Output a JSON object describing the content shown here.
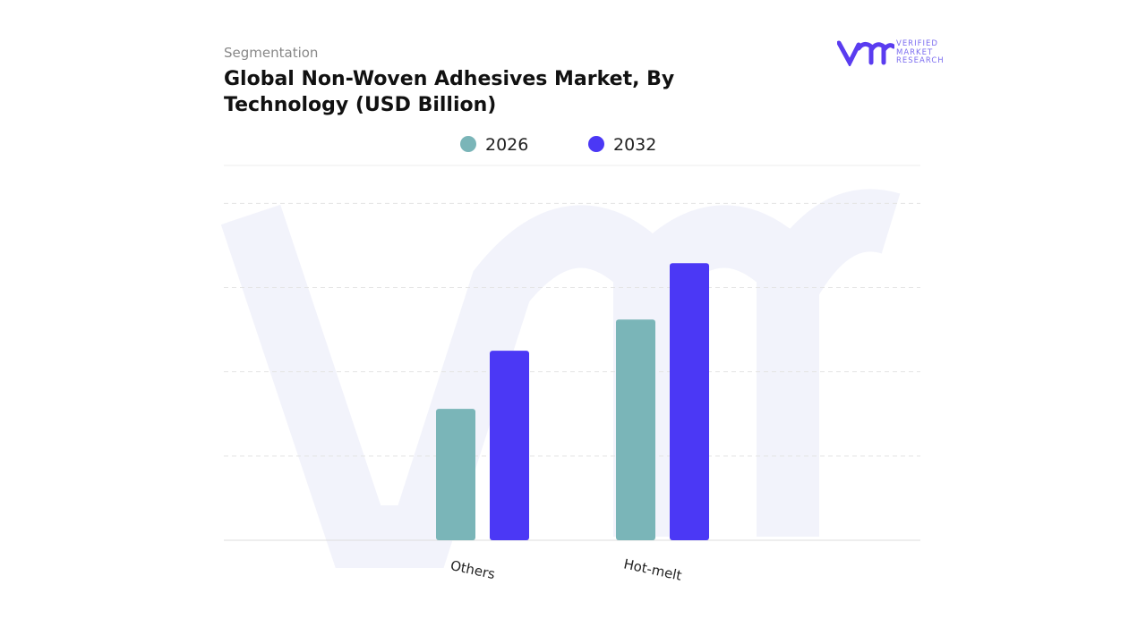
{
  "header": {
    "subtitle": "Segmentation",
    "logo": "VERIFIED MARKET RESEARCH"
  },
  "chart_data": {
    "type": "bar",
    "title": "Global Non-Woven Adhesives Market, By Technology (USD Billion)",
    "categories": [
      "Others",
      "Hot-melt"
    ],
    "series": [
      {
        "name": "2026",
        "color": "#7ab5b8",
        "values": [
          1.56,
          2.62
        ]
      },
      {
        "name": "2032",
        "color": "#4b38f5",
        "values": [
          2.25,
          3.29
        ]
      }
    ],
    "ylim": [
      0,
      4.45
    ],
    "yticks": [
      1,
      2,
      3,
      4
    ],
    "grid": true
  }
}
